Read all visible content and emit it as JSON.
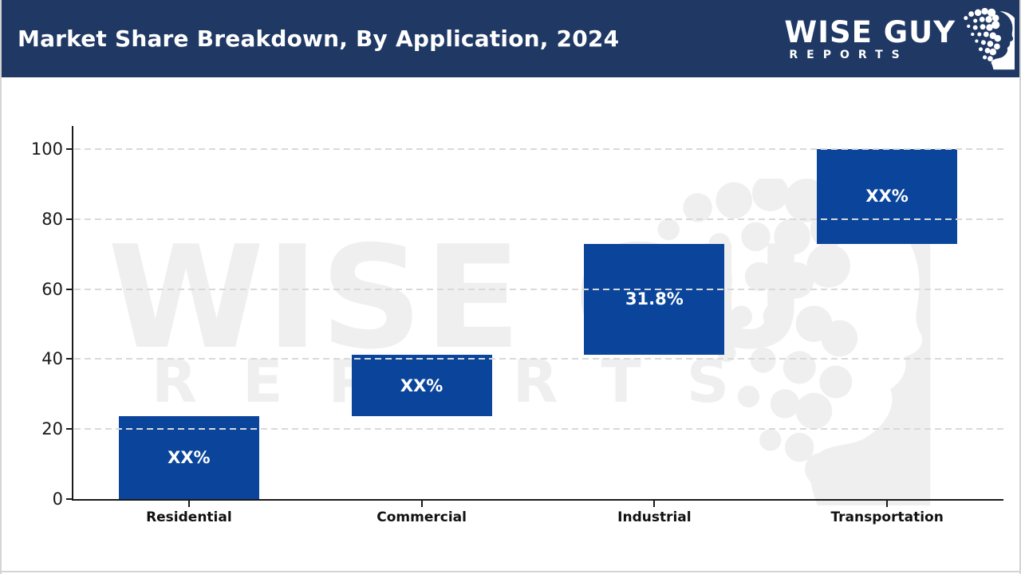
{
  "header": {
    "title": "Market Share Breakdown, By Application, 2024",
    "logo_name": "WISE GUY",
    "logo_sub": "REPORTS"
  },
  "watermark": {
    "line1": "WISE GU",
    "line2": "REPORTS"
  },
  "colors": {
    "header_bg": "#1F3864",
    "bar": "#0A459B",
    "grid": "#D9D9D9",
    "axis": "#1A1A1A",
    "bar_label_text": "#FFFFFF",
    "watermark": "#EFEFEF"
  },
  "chart_data": {
    "type": "bar",
    "subtype": "waterfall",
    "title": "Market Share Breakdown, By Application, 2024",
    "categories": [
      "Residential",
      "Commercial",
      "Industrial",
      "Transportation"
    ],
    "segments": [
      {
        "category": "Residential",
        "start": 0,
        "end": 23.6,
        "label": "XX%"
      },
      {
        "category": "Commercial",
        "start": 23.6,
        "end": 41.2,
        "label": "XX%"
      },
      {
        "category": "Industrial",
        "start": 41.2,
        "end": 73.0,
        "label": "31.8%"
      },
      {
        "category": "Transportation",
        "start": 73.0,
        "end": 100,
        "label": "XX%"
      }
    ],
    "ylim": [
      0,
      100
    ],
    "yticks": [
      0,
      20,
      40,
      60,
      80,
      100
    ],
    "xlabel": "",
    "ylabel": "",
    "grid": "dashed-horizontal",
    "legend": "none"
  }
}
